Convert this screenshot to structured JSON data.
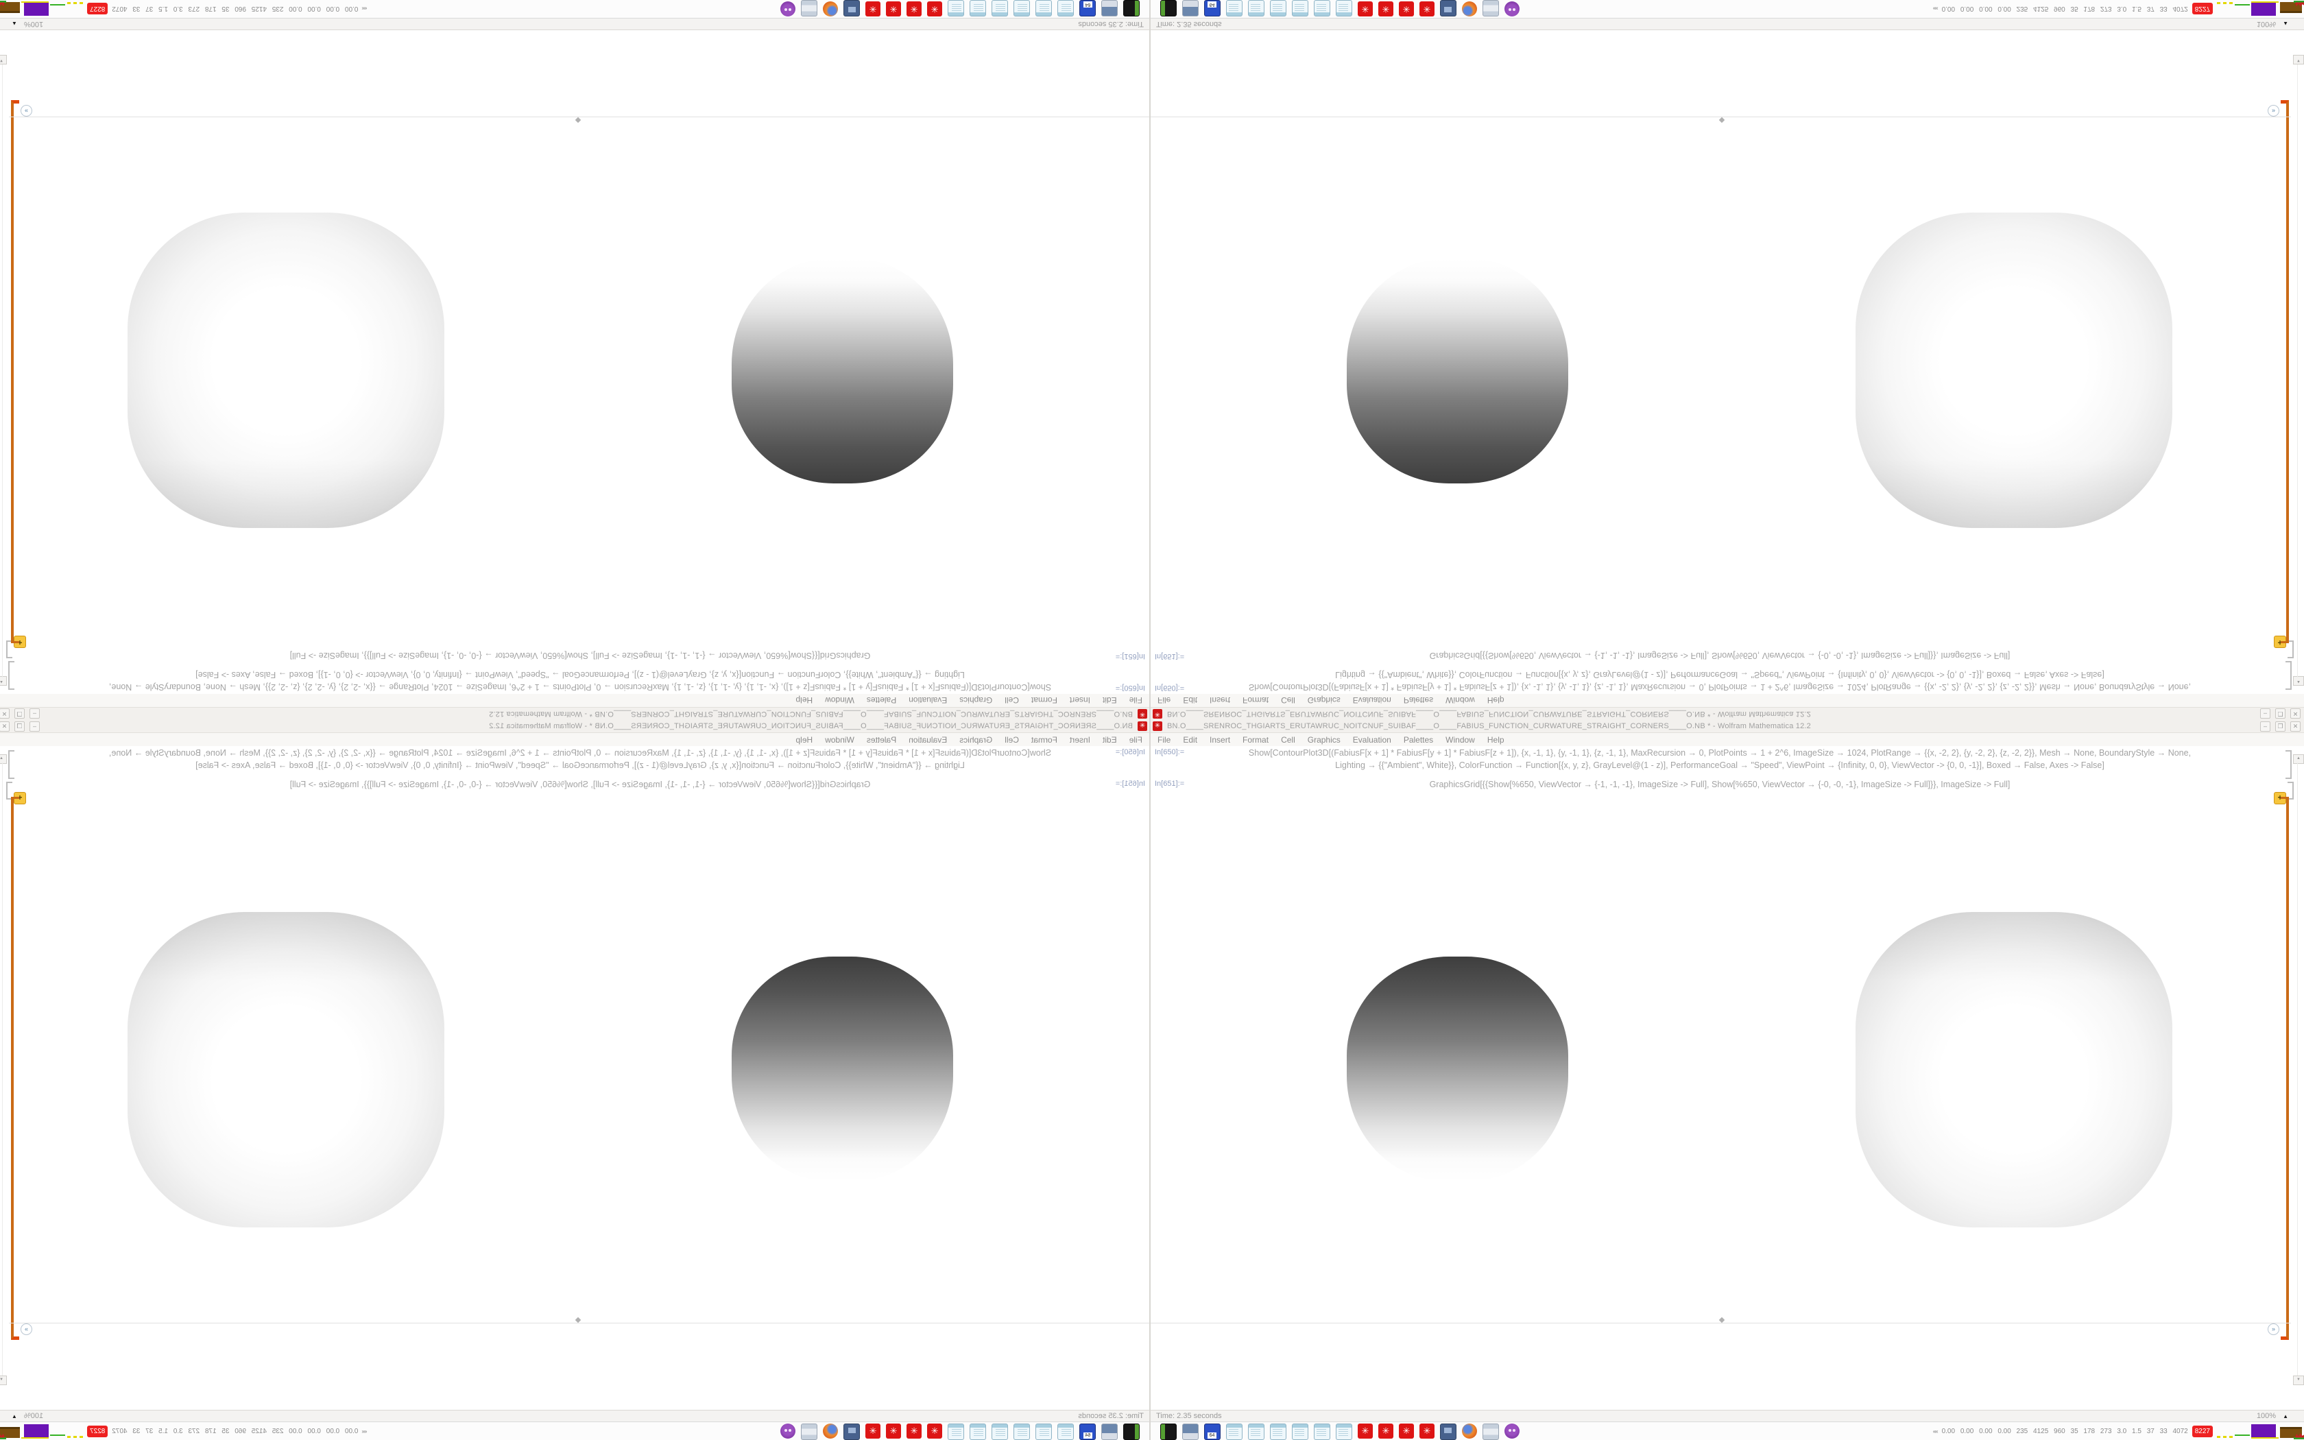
{
  "window": {
    "title": "BN.O____SRENROC_THGIARTS_ERUTAWRUC_NOITCNUF_SUIBAF____O____FABIUS_FUNCTION_CURWATURE_STRAIGHT_CORNERS____O.NB * - Wolfram Mathematica 12.2",
    "app_icon": "mathematica-spikey-icon",
    "window_buttons": {
      "minimize": "–",
      "maximize": "❐",
      "close": "✕"
    },
    "menu": [
      "File",
      "Edit",
      "Insert",
      "Format",
      "Cell",
      "Graphics",
      "Evaluation",
      "Palettes",
      "Window",
      "Help"
    ],
    "cells": [
      {
        "label": "In[650]:=",
        "lines": [
          "Show[ContourPlot3D[(FabiusF[x + 1] * FabiusF[y + 1] * FabiusF[z + 1]), {x, -1, 1}, {y, -1, 1}, {z, -1, 1}, MaxRecursion → 0, PlotPoints → 1 + 2^6, ImageSize → 1024, PlotRange → {{x, -2, 2}, {y, -2, 2}, {z, -2, 2}}, Mesh → None, BoundaryStyle → None,",
          "Lighting → {{\"Ambient\", White}}, ColorFunction → Function[{x, y, z}, GrayLevel@(1 - z)], PerformanceGoal → \"Speed\", ViewPoint → {Infinity, 0, 0}, ViewVector -> {0, 0, -1}], Boxed → False, Axes -> False]"
        ]
      },
      {
        "label": "In[651]:=",
        "lines": [
          "GraphicsGrid[{{Show[%650, ViewVector → {-1, -1, -1}, ImageSize -> Full], Show[%650, ViewVector → {-0, -0, -1}, ImageSize -> Full]}}, ImageSize -> Full]"
        ]
      }
    ],
    "outputs": [
      {
        "name": "fabius-contour-blob-angled-view",
        "shading": "dark-top-to-white-bottom"
      },
      {
        "name": "fabius-contour-blob-axis-view",
        "shading": "white-center-gray-edges"
      }
    ],
    "cell_bracket_badge": "+",
    "status": {
      "time": "Time: 2.35 seconds",
      "magnification": "100%"
    }
  },
  "taskbar": {
    "icons": [
      {
        "type": "terminal",
        "name": "terminal-icon"
      },
      {
        "type": "computer",
        "name": "file-manager-icon"
      },
      {
        "type": "floppy",
        "name": "commodore64-icon"
      },
      {
        "type": "note",
        "name": "text-editor-icon"
      },
      {
        "type": "note",
        "name": "text-editor-icon"
      },
      {
        "type": "note",
        "name": "text-editor-icon"
      },
      {
        "type": "note",
        "name": "text-editor-icon"
      },
      {
        "type": "note",
        "name": "text-editor-icon"
      },
      {
        "type": "note",
        "name": "text-editor-icon"
      },
      {
        "type": "mathematica",
        "name": "mathematica-icon"
      },
      {
        "type": "mathematica",
        "name": "mathematica-icon"
      },
      {
        "type": "mathematica",
        "name": "mathematica-icon"
      },
      {
        "type": "mathematica",
        "name": "mathematica-icon"
      },
      {
        "type": "screenshot",
        "name": "screenshot-tool-icon"
      },
      {
        "type": "firefox",
        "name": "firefox-icon"
      },
      {
        "type": "scroll",
        "name": "document-viewer-icon"
      },
      {
        "type": "chat",
        "name": "chat-app-icon"
      }
    ],
    "tray": {
      "expander": "««",
      "numbers": "0.00 0.00 0.00 0.00 235 4125 960 35 178 273 3.0 1.5 37 33 4072",
      "alert": "8227"
    }
  },
  "colors": {
    "selected_cell_bracket": "#ca6a16",
    "cell_badge": "#f6c53c",
    "mathematica_red": "#dd1414",
    "tray_alert_red": "#ee2020",
    "code_text": "#a3a3a3",
    "cell_label_blue": "#93a0bf"
  },
  "layout_note": "Screen is composed of one source window; bottom-left is its horizontal mirror, top-right its vertical flip, top-left rotated 180°."
}
